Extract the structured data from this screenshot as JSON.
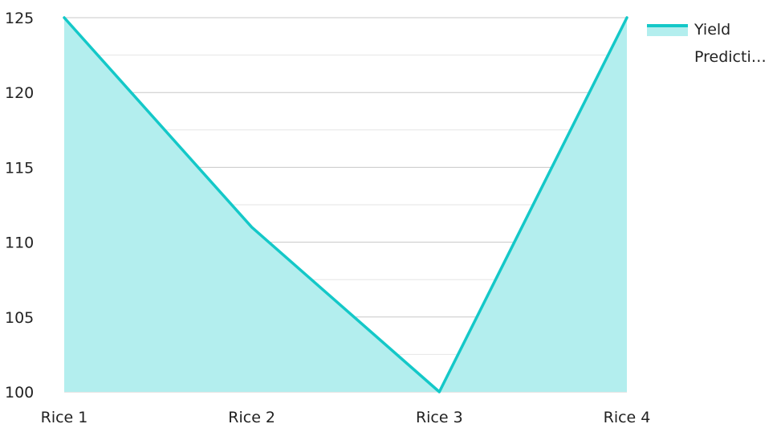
{
  "chart_data": {
    "type": "area",
    "categories": [
      "Rice 1",
      "Rice 2",
      "Rice 3",
      "Rice 4"
    ],
    "series": [
      {
        "name": "Yield Predicti…",
        "values": [
          125,
          111,
          100,
          125
        ]
      }
    ],
    "ylim": [
      100,
      125
    ],
    "yticks": [
      "100",
      "105",
      "110",
      "115",
      "120",
      "125"
    ],
    "grid": true,
    "legend_position": "top-right",
    "colors": {
      "line": "#14c8c8",
      "fill": "#b3eeee",
      "grid_major": "#c8c8c8",
      "grid_minor": "#e6e6e6",
      "text": "#222222"
    },
    "legend": {
      "line1": "Yield",
      "line2": "Predicti…"
    }
  }
}
